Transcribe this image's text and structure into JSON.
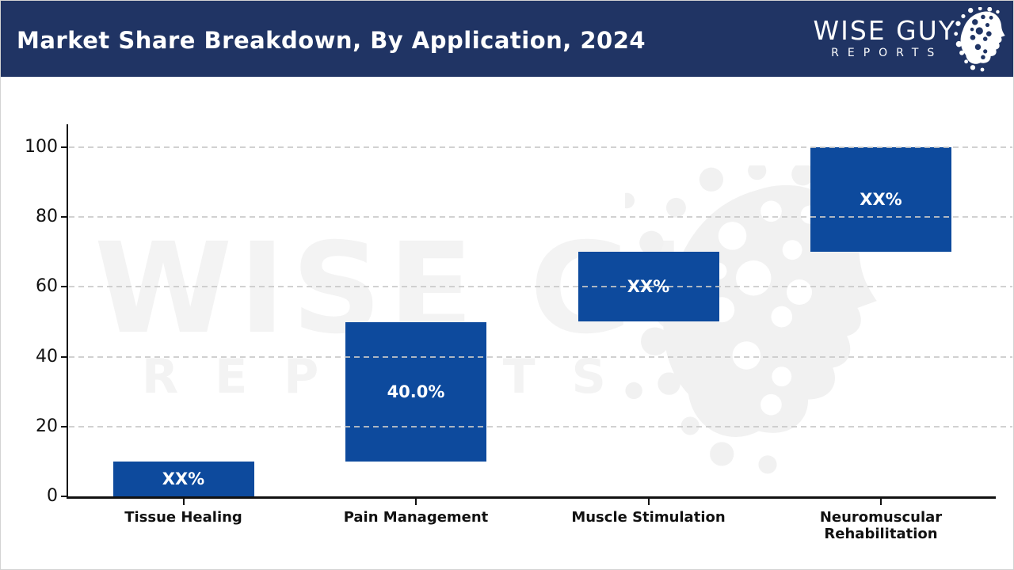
{
  "header": {
    "title": "Market Share Breakdown, By Application, 2024",
    "bg_color": "#203464",
    "logo": {
      "line1": "WISE GUY",
      "line2": "REPORTS"
    }
  },
  "watermark": {
    "line1": "WISE GUY",
    "line2": "REPORTS"
  },
  "chart_data": {
    "type": "bar",
    "subtype": "floating-range-bars",
    "title": "Market Share Breakdown, By Application, 2024",
    "categories": [
      "Tissue Healing",
      "Pain Management",
      "Muscle Stimulation",
      "Neuromuscular Rehabilitation"
    ],
    "bars": [
      {
        "category": "Tissue Healing",
        "from": 0,
        "to": 10,
        "label": "XX%"
      },
      {
        "category": "Pain Management",
        "from": 10,
        "to": 50,
        "label": "40.0%"
      },
      {
        "category": "Muscle Stimulation",
        "from": 50,
        "to": 70,
        "label": "XX%"
      },
      {
        "category": "Neuromuscular Rehabilitation",
        "from": 70,
        "to": 100,
        "label": "XX%"
      }
    ],
    "yticks": [
      0,
      20,
      40,
      60,
      80,
      100
    ],
    "ylim": [
      0,
      105
    ],
    "xlabel": "",
    "ylabel": "",
    "grid": "horizontal-dashed",
    "legend": "none",
    "bar_color": "#0d4a9d",
    "bar_label_color": "#ffffff",
    "axis_color": "#111111"
  }
}
